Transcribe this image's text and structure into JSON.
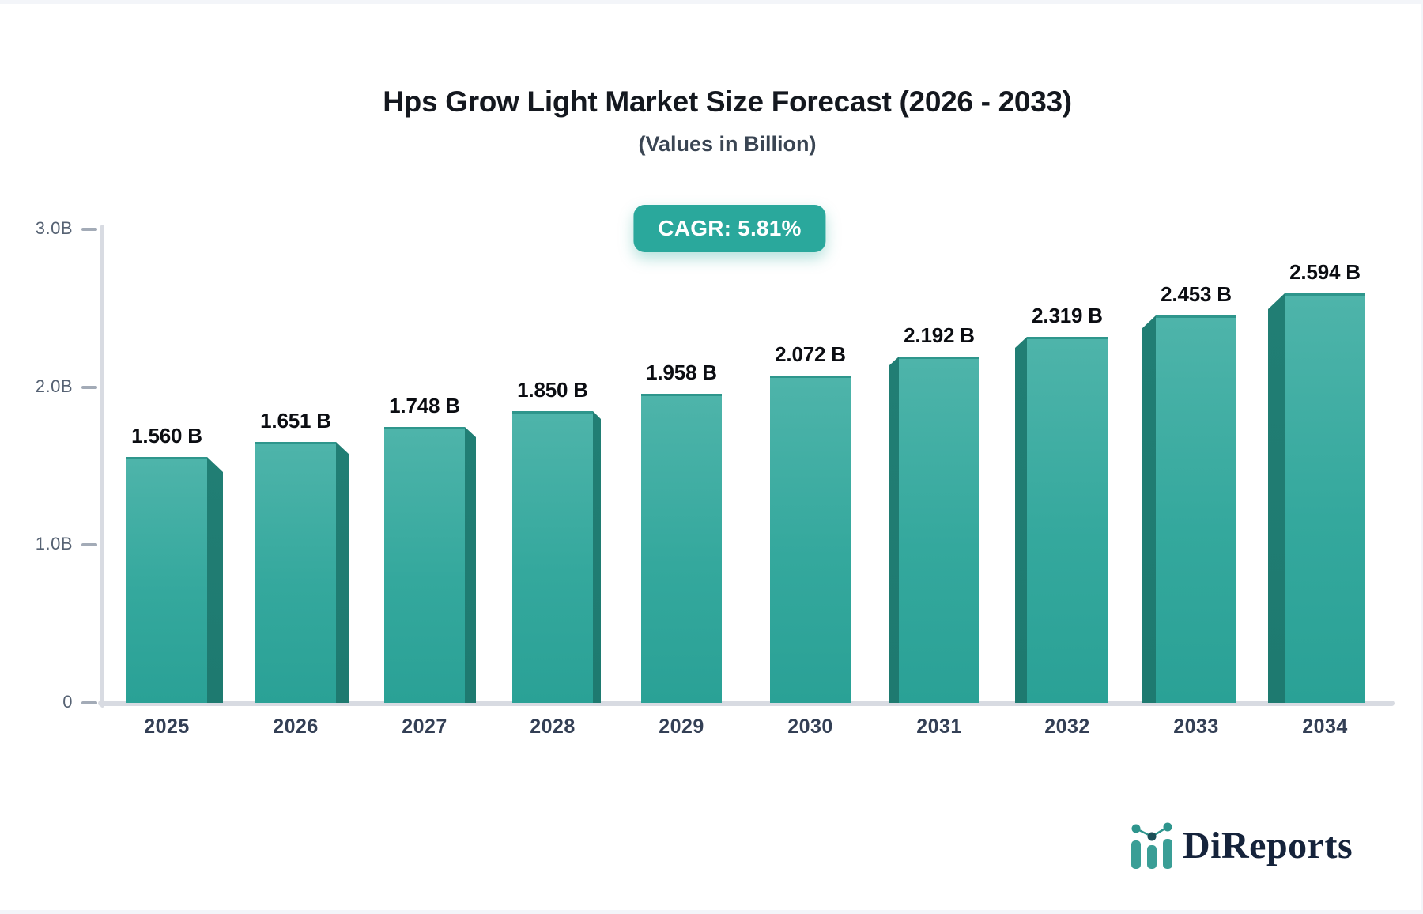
{
  "chart": {
    "title": "Hps Grow Light Market Size Forecast (2026 - 2033)",
    "subtitle": "(Values in Billion)",
    "cagr_label": "CAGR: 5.81%"
  },
  "chart_data": {
    "type": "bar",
    "title": "Hps Grow Light Market Size Forecast (2026 - 2033)",
    "subtitle": "(Values in Billion)",
    "annotation": "CAGR: 5.81%",
    "categories": [
      "2025",
      "2026",
      "2027",
      "2028",
      "2029",
      "2030",
      "2031",
      "2032",
      "2033",
      "2034"
    ],
    "values": [
      1.56,
      1.651,
      1.748,
      1.85,
      1.958,
      2.072,
      2.192,
      2.319,
      2.453,
      2.594
    ],
    "value_labels": [
      "1.560 B",
      "1.651 B",
      "1.748 B",
      "1.850 B",
      "1.958 B",
      "2.072 B",
      "2.192 B",
      "2.319 B",
      "2.453 B",
      "2.594 B"
    ],
    "xlabel": "",
    "ylabel": "",
    "ylim": [
      0,
      3.0
    ],
    "y_ticks": [
      "0",
      "1.0B",
      "2.0B",
      "3.0B"
    ],
    "grid": false,
    "legend": false,
    "colors": {
      "bar_face_top": "#4eb4aa",
      "bar_face_bottom": "#2aa196",
      "bar_side": "#1e7a70",
      "badge_background": "#2aa89c",
      "badge_text": "#ffffff",
      "axis_line": "#d8dbe2",
      "axis_text": "#566273",
      "x_label_text": "#333f55",
      "value_label_text": "#0b0d12",
      "title_text": "#14181f"
    }
  },
  "branding": {
    "logo_text": "DiReports",
    "logo_icon": "bar-trend-icon"
  }
}
